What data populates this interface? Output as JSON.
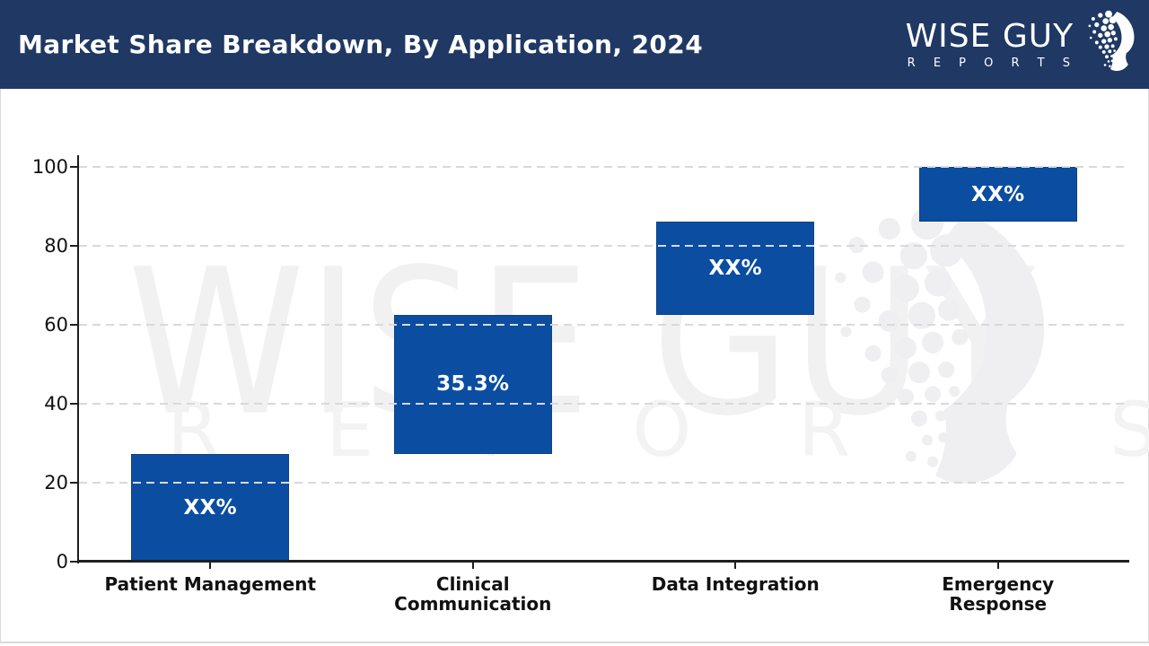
{
  "header": {
    "title": "Market Share Breakdown, By Application, 2024",
    "logo": {
      "name": "WISE GUY",
      "tagline": "R E P O R T S"
    }
  },
  "watermark": {
    "name": "WISE GUY",
    "tagline": "R E P O R T S"
  },
  "chart_data": {
    "type": "bar",
    "subtype": "waterfall-floating-segments",
    "title": "Market Share Breakdown, By Application, 2024",
    "categories": [
      "Patient Management",
      "Clinical\nCommunication",
      "Data Integration",
      "Emergency Response"
    ],
    "segments": [
      {
        "category": "Patient Management",
        "start": 0,
        "end": 27.3,
        "value": 27.3,
        "label": "XX%"
      },
      {
        "category": "Clinical Communication",
        "start": 27.3,
        "end": 62.6,
        "value": 35.3,
        "label": "35.3%"
      },
      {
        "category": "Data Integration",
        "start": 62.6,
        "end": 86.1,
        "value": 23.5,
        "label": "XX%"
      },
      {
        "category": "Emergency Response",
        "start": 86.1,
        "end": 100,
        "value": 13.9,
        "label": "XX%"
      }
    ],
    "ylim": [
      0,
      100
    ],
    "yticks": [
      0,
      20,
      40,
      60,
      80,
      100
    ],
    "grid": "horizontal-dashed",
    "legend": "none",
    "colors": {
      "bar": "#0b4da1",
      "bar_label": "#ffffff",
      "header_bg": "#1f3864",
      "axis": "#1f1f1f",
      "gridline": "#d9d9d9",
      "watermark": "#f1f1f2"
    }
  }
}
